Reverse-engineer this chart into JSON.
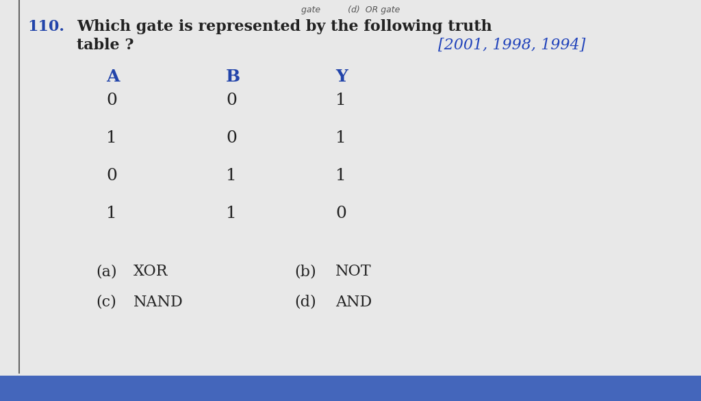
{
  "question_number": "110.",
  "question_line1": "Which gate is represented by the following truth",
  "question_line2": "table ?",
  "years_ref": "[2001, 1998, 1994]",
  "col_headers": [
    "A",
    "B",
    "Y"
  ],
  "table_data": [
    [
      "0",
      "0",
      "1"
    ],
    [
      "1",
      "0",
      "1"
    ],
    [
      "0",
      "1",
      "1"
    ],
    [
      "1",
      "1",
      "0"
    ]
  ],
  "options": [
    {
      "label": "(a)",
      "text": "XOR"
    },
    {
      "label": "(b)",
      "text": "NOT"
    },
    {
      "label": "(c)",
      "text": "NAND"
    },
    {
      "label": "(d)",
      "text": "AND"
    }
  ],
  "bg_color": "#e8e8e8",
  "left_line_color": "#666666",
  "bottom_bar_color": "#4466bb",
  "text_color_black": "#222222",
  "header_color": "#2244aa",
  "years_color": "#2244bb",
  "qnum_color": "#2244aa",
  "option_label_color": "#222222",
  "option_text_color": "#222222"
}
